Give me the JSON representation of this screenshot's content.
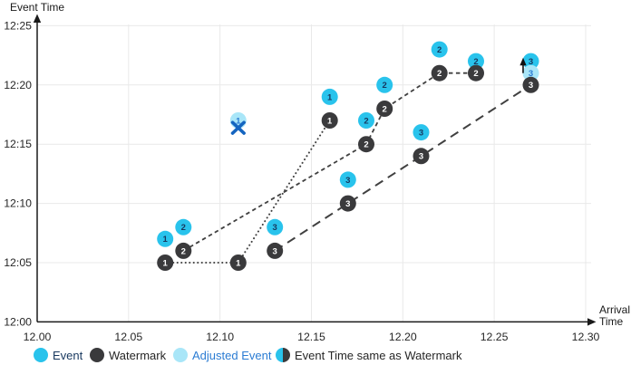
{
  "chart": {
    "y_axis_title": "Event Time",
    "x_axis_title_line1": "Arrival",
    "x_axis_title_line2": "Time"
  },
  "colors": {
    "event": "#29c3ec",
    "watermark": "#3a3a3c",
    "adjusted": "#a9e6f8",
    "event_number": "#17375e",
    "watermark_number": "#ffffff",
    "adjusted_number": "#2b7cd3",
    "line": "#404040",
    "grid": "#e9e9e9",
    "axis": "#1a1a1a",
    "x_mark": "#1565c0",
    "tick_text": "#262626"
  },
  "chart_data": {
    "type": "scatter",
    "title": "",
    "xlabel": "Arrival Time",
    "ylabel": "Event Time",
    "x_axis": {
      "min": 12.0,
      "step": 0.05,
      "ticks": [
        "12.00",
        "12.05",
        "12.10",
        "12.15",
        "12.20",
        "12.25",
        "12.30"
      ]
    },
    "y_axis": {
      "min_minutes": 0,
      "step_minutes": 5,
      "ticks": [
        "12:00",
        "12:05",
        "12:10",
        "12:15",
        "12:20",
        "12:25"
      ]
    },
    "groups": [
      {
        "id": "1",
        "line_style": "dotted",
        "events": [
          {
            "arrival": 12.07,
            "event_time": "12:07"
          },
          {
            "arrival": 12.16,
            "event_time": "12:19"
          }
        ],
        "adjusted": [
          {
            "arrival": 12.11,
            "event_time": "12:17",
            "dropped": true
          }
        ],
        "watermarks": [
          {
            "arrival": 12.07,
            "event_time": "12:05"
          },
          {
            "arrival": 12.11,
            "event_time": "12:05"
          },
          {
            "arrival": 12.16,
            "event_time": "12:17"
          }
        ]
      },
      {
        "id": "2",
        "line_style": "dashed",
        "events": [
          {
            "arrival": 12.08,
            "event_time": "12:08"
          },
          {
            "arrival": 12.18,
            "event_time": "12:17"
          },
          {
            "arrival": 12.19,
            "event_time": "12:20"
          },
          {
            "arrival": 12.22,
            "event_time": "12:23"
          },
          {
            "arrival": 12.24,
            "event_time": "12:22"
          }
        ],
        "adjusted": [],
        "watermarks": [
          {
            "arrival": 12.08,
            "event_time": "12:06"
          },
          {
            "arrival": 12.18,
            "event_time": "12:15"
          },
          {
            "arrival": 12.19,
            "event_time": "12:18"
          },
          {
            "arrival": 12.22,
            "event_time": "12:21"
          },
          {
            "arrival": 12.24,
            "event_time": "12:21"
          }
        ]
      },
      {
        "id": "3",
        "line_style": "long-dash",
        "events": [
          {
            "arrival": 12.13,
            "event_time": "12:08"
          },
          {
            "arrival": 12.17,
            "event_time": "12:12"
          },
          {
            "arrival": 12.21,
            "event_time": "12:16"
          },
          {
            "arrival": 12.27,
            "event_time": "12:22"
          }
        ],
        "adjusted": [
          {
            "arrival": 12.27,
            "event_time": "12:21",
            "arrow_up": true
          }
        ],
        "watermarks": [
          {
            "arrival": 12.13,
            "event_time": "12:06"
          },
          {
            "arrival": 12.17,
            "event_time": "12:10"
          },
          {
            "arrival": 12.21,
            "event_time": "12:14"
          },
          {
            "arrival": 12.27,
            "event_time": "12:20"
          }
        ]
      }
    ],
    "legend": [
      {
        "key": "event",
        "label": "Event",
        "text_color": "#17375e"
      },
      {
        "key": "watermark",
        "label": "Watermark",
        "text_color": "#262626"
      },
      {
        "key": "adjusted",
        "label": "Adjusted Event",
        "text_color": "#2b7cd3"
      },
      {
        "key": "half",
        "label": "Event Time same as Watermark",
        "text_color": "#262626"
      }
    ],
    "legend_position": "bottom"
  }
}
